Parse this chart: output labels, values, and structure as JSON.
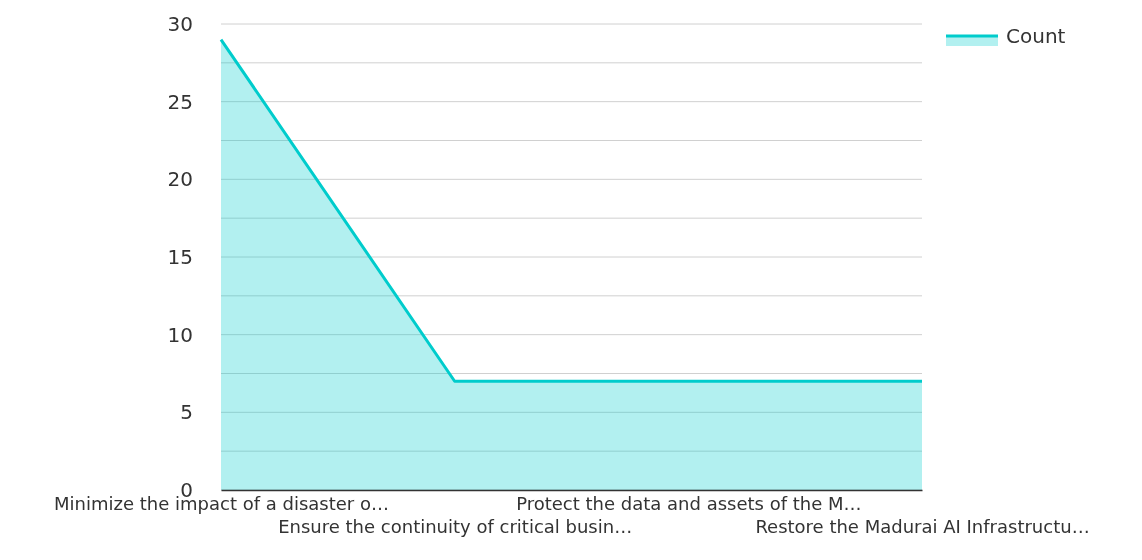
{
  "chart_data": {
    "type": "area",
    "categories": [
      "Minimize the impact of a disaster o…",
      "Ensure the continuity of critical busin…",
      "Protect the data and assets of the M…",
      "Restore the Madurai AI Infrastructu…"
    ],
    "series": [
      {
        "name": "Count",
        "color": "#00cccc",
        "values": [
          29,
          7,
          7,
          7
        ]
      }
    ],
    "ylim": [
      0,
      30
    ],
    "yticks": [
      0,
      {
        "value": 2.5,
        "label": null
      },
      5,
      {
        "value": 7.5,
        "label": null
      },
      10,
      {
        "value": 12.5,
        "label": null
      },
      15,
      {
        "value": 17.5,
        "label": null
      },
      20,
      {
        "value": 22.5,
        "label": null
      },
      25,
      {
        "value": 27.5,
        "label": null
      },
      30
    ],
    "grid": "y",
    "legend": "top right"
  }
}
